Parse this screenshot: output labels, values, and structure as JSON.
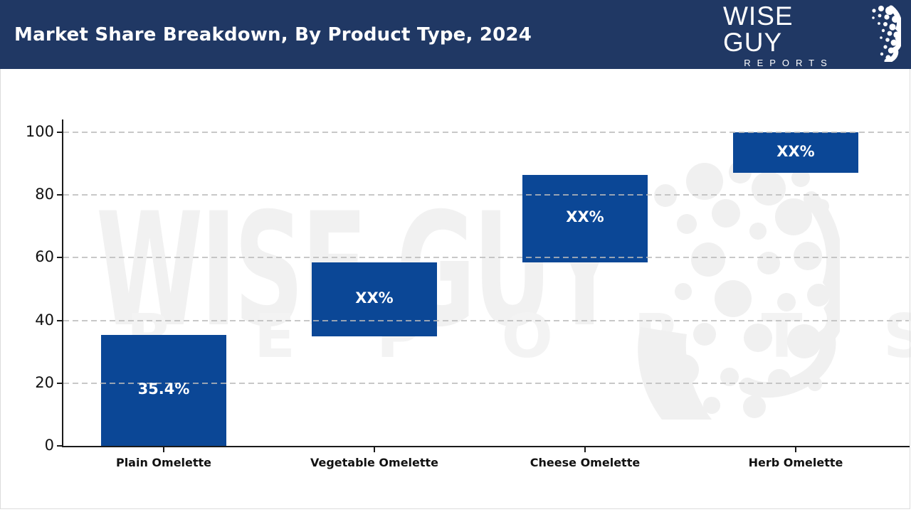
{
  "header": {
    "title": "Market Share Breakdown, By Product Type, 2024",
    "logo": {
      "line1": "WISE GUY",
      "line2": "REPORTS"
    }
  },
  "watermark": {
    "line1": "WISE GUY",
    "line2": "R E P O R T S"
  },
  "chart_data": {
    "type": "bar",
    "variant": "floating-segment waterfall-style market share bars",
    "title": "Market Share Breakdown, By Product Type, 2024",
    "categories": [
      "Plain Omelette",
      "Vegetable Omelette",
      "Cheese Omelette",
      "Herb Omelette"
    ],
    "bars": [
      {
        "category": "Plain Omelette",
        "start": 0,
        "end": 35.4,
        "label": "35.4%"
      },
      {
        "category": "Vegetable Omelette",
        "start": 35,
        "end": 58.5,
        "label": "XX%"
      },
      {
        "category": "Cheese Omelette",
        "start": 58.5,
        "end": 86.5,
        "label": "XX%"
      },
      {
        "category": "Herb Omelette",
        "start": 87,
        "end": 100,
        "label": "XX%"
      }
    ],
    "yticks": [
      0,
      20,
      40,
      60,
      80,
      100
    ],
    "ylim": [
      0,
      104
    ],
    "xlabel": "",
    "ylabel": "",
    "grid": "horizontal-dashed",
    "legend": "none",
    "bar_color": "#0b4796",
    "label_color": "#ffffff"
  },
  "colors": {
    "header_bg": "#203864",
    "bar": "#0b4796",
    "axis": "#1a1a1a",
    "grid": "#bababa",
    "watermark": "#f1f1f1",
    "page_bg": "#ffffff"
  }
}
